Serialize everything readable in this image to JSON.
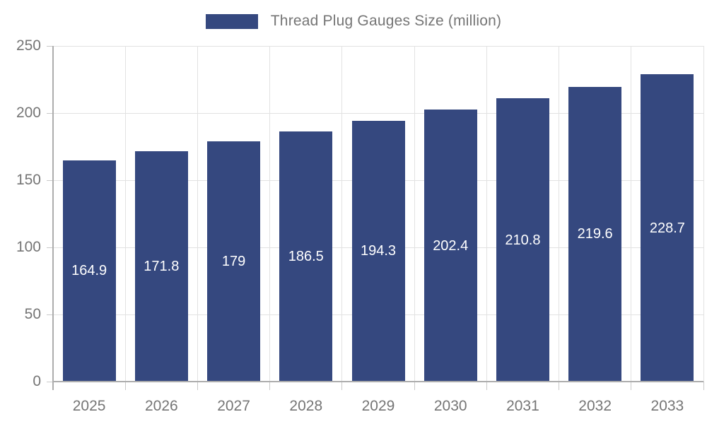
{
  "legend": {
    "label": "Thread Plug Gauges Size (million)"
  },
  "colors": {
    "bar": "#35487f",
    "grid": "#e2e2e2",
    "axis": "#adadad",
    "tick_label": "#757575",
    "value_label": "#ffffff",
    "background": "#ffffff"
  },
  "chart_data": {
    "type": "bar",
    "title": "Thread Plug Gauges Size (million)",
    "series_name": "Thread Plug Gauges Size (million)",
    "categories": [
      "2025",
      "2026",
      "2027",
      "2028",
      "2029",
      "2030",
      "2031",
      "2032",
      "2033"
    ],
    "values": [
      164.9,
      171.8,
      179,
      186.5,
      194.3,
      202.4,
      210.8,
      219.6,
      228.7
    ],
    "xlabel": "",
    "ylabel": "",
    "ylim": [
      0,
      250
    ],
    "yticks": [
      0,
      50,
      100,
      150,
      200,
      250
    ],
    "grid": true,
    "legend_position": "top-center",
    "value_label_position": "inside-center"
  }
}
